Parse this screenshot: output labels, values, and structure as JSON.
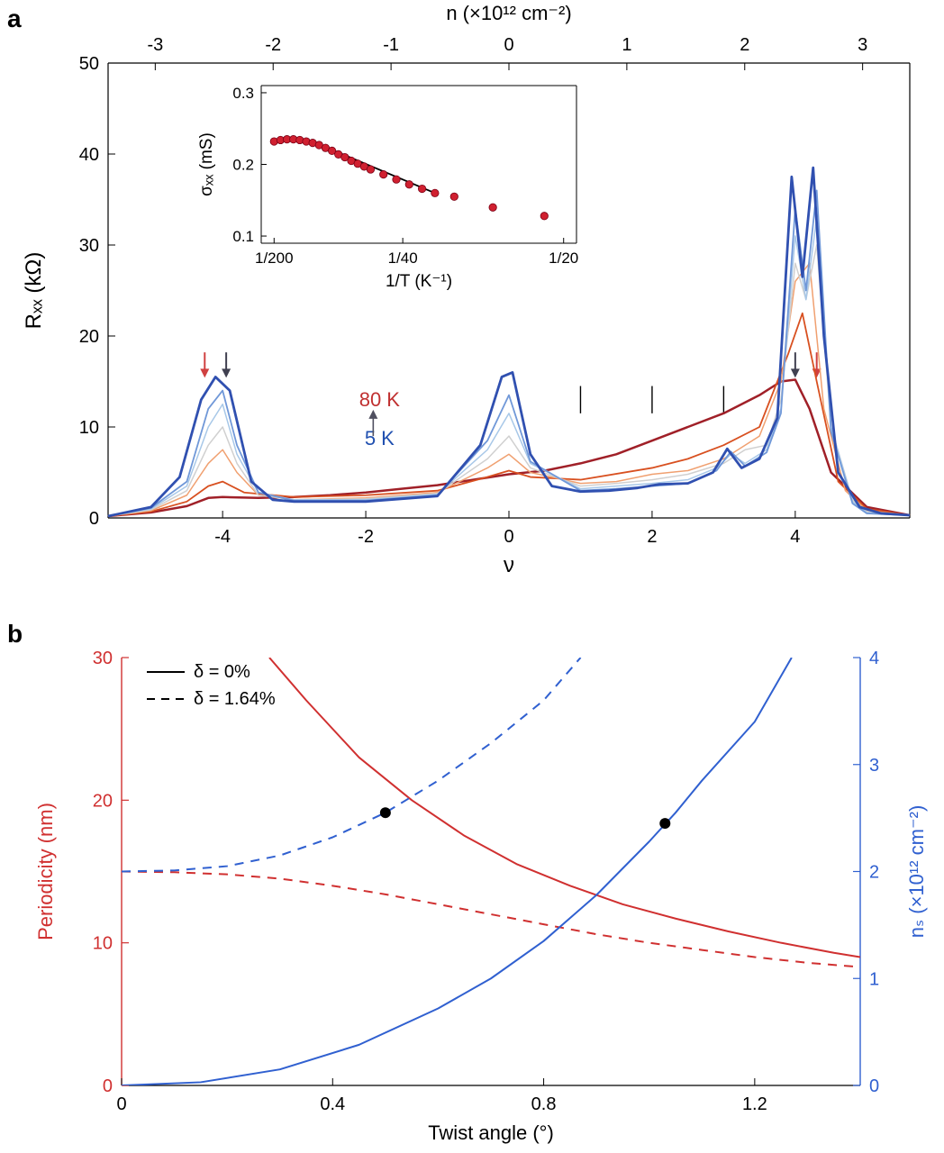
{
  "panelA": {
    "label": "a",
    "topAxis": {
      "label": "n (×10¹² cm⁻²)",
      "ticks": [
        -3,
        -2,
        -1,
        0,
        1,
        2,
        3
      ],
      "min": -3.4,
      "max": 3.4
    },
    "bottomAxis": {
      "label": "ν",
      "ticks": [
        -4,
        -2,
        0,
        2,
        4
      ],
      "min": -5.6,
      "max": 5.6
    },
    "leftAxis": {
      "label": "Rₓₓ (kΩ)",
      "ticks": [
        0,
        10,
        20,
        30,
        40,
        50
      ],
      "min": 0,
      "max": 50
    },
    "tempAnnotations": {
      "high": "80 K",
      "low": "5 K",
      "highColor": "#c03030",
      "lowColor": "#2050b0"
    },
    "vMarks": [
      1,
      2,
      3
    ],
    "arrows": [
      {
        "x": -4.25,
        "color": "#d04040"
      },
      {
        "x": -3.95,
        "color": "#404050"
      },
      {
        "x": 4.0,
        "color": "#404050"
      },
      {
        "x": 4.3,
        "color": "#d04040"
      }
    ],
    "curves": [
      {
        "color": "#a02028",
        "width": 2.5,
        "points": [
          [
            -5.6,
            0.2
          ],
          [
            -5.0,
            0.6
          ],
          [
            -4.5,
            1.3
          ],
          [
            -4.2,
            2.2
          ],
          [
            -4.0,
            2.3
          ],
          [
            -3.5,
            2.2
          ],
          [
            -3.0,
            2.3
          ],
          [
            -2.5,
            2.5
          ],
          [
            -2.0,
            2.8
          ],
          [
            -1.5,
            3.2
          ],
          [
            -1.0,
            3.6
          ],
          [
            -0.5,
            4.2
          ],
          [
            0.0,
            4.8
          ],
          [
            0.5,
            5.2
          ],
          [
            1.0,
            6.0
          ],
          [
            1.5,
            7.0
          ],
          [
            2.0,
            8.5
          ],
          [
            2.5,
            10.0
          ],
          [
            3.0,
            11.5
          ],
          [
            3.5,
            13.5
          ],
          [
            3.8,
            15.0
          ],
          [
            4.0,
            15.2
          ],
          [
            4.2,
            12.0
          ],
          [
            4.5,
            5.0
          ],
          [
            5.0,
            1.2
          ],
          [
            5.6,
            0.3
          ]
        ]
      },
      {
        "color": "#d85020",
        "width": 1.8,
        "points": [
          [
            -5.6,
            0.2
          ],
          [
            -5.0,
            0.7
          ],
          [
            -4.5,
            1.8
          ],
          [
            -4.2,
            3.5
          ],
          [
            -4.0,
            4.0
          ],
          [
            -3.7,
            2.8
          ],
          [
            -3.0,
            2.3
          ],
          [
            -2.0,
            2.5
          ],
          [
            -1.0,
            3.0
          ],
          [
            -0.3,
            4.5
          ],
          [
            0.0,
            5.2
          ],
          [
            0.3,
            4.5
          ],
          [
            1.0,
            4.2
          ],
          [
            2.0,
            5.5
          ],
          [
            2.5,
            6.5
          ],
          [
            3.0,
            8.0
          ],
          [
            3.5,
            10.0
          ],
          [
            3.9,
            18.0
          ],
          [
            4.1,
            22.5
          ],
          [
            4.3,
            15.0
          ],
          [
            4.6,
            4.0
          ],
          [
            5.0,
            1.0
          ],
          [
            5.6,
            0.3
          ]
        ]
      },
      {
        "color": "#f0a070",
        "width": 1.5,
        "points": [
          [
            -5.6,
            0.2
          ],
          [
            -5.0,
            0.8
          ],
          [
            -4.5,
            2.5
          ],
          [
            -4.2,
            6.0
          ],
          [
            -4.0,
            7.5
          ],
          [
            -3.8,
            5.0
          ],
          [
            -3.5,
            2.5
          ],
          [
            -3.0,
            2.0
          ],
          [
            -2.0,
            2.2
          ],
          [
            -1.0,
            2.8
          ],
          [
            -0.3,
            5.5
          ],
          [
            0.0,
            7.0
          ],
          [
            0.3,
            5.0
          ],
          [
            1.0,
            3.8
          ],
          [
            1.5,
            4.0
          ],
          [
            2.0,
            4.8
          ],
          [
            2.5,
            5.2
          ],
          [
            3.0,
            6.5
          ],
          [
            3.5,
            9.0
          ],
          [
            3.8,
            15.0
          ],
          [
            4.0,
            26.0
          ],
          [
            4.2,
            28.0
          ],
          [
            4.4,
            12.0
          ],
          [
            4.7,
            3.0
          ],
          [
            5.0,
            0.8
          ],
          [
            5.6,
            0.3
          ]
        ]
      },
      {
        "color": "#d0d0d0",
        "width": 1.5,
        "points": [
          [
            -5.6,
            0.2
          ],
          [
            -5.0,
            0.9
          ],
          [
            -4.5,
            3.0
          ],
          [
            -4.2,
            8.0
          ],
          [
            -4.0,
            10.0
          ],
          [
            -3.8,
            6.0
          ],
          [
            -3.5,
            2.5
          ],
          [
            -3.0,
            2.0
          ],
          [
            -2.0,
            2.1
          ],
          [
            -1.0,
            2.7
          ],
          [
            -0.3,
            6.5
          ],
          [
            0.0,
            9.0
          ],
          [
            0.3,
            5.5
          ],
          [
            1.0,
            3.5
          ],
          [
            1.5,
            3.8
          ],
          [
            2.0,
            4.2
          ],
          [
            2.5,
            4.8
          ],
          [
            3.0,
            6.0
          ],
          [
            3.3,
            7.5
          ],
          [
            3.6,
            8.0
          ],
          [
            3.8,
            13.0
          ],
          [
            4.0,
            28.0
          ],
          [
            4.15,
            24.0
          ],
          [
            4.3,
            30.0
          ],
          [
            4.5,
            10.0
          ],
          [
            4.8,
            2.0
          ],
          [
            5.0,
            0.7
          ],
          [
            5.6,
            0.3
          ]
        ]
      },
      {
        "color": "#a8c8e8",
        "width": 1.5,
        "points": [
          [
            -5.6,
            0.2
          ],
          [
            -5.0,
            1.0
          ],
          [
            -4.5,
            3.5
          ],
          [
            -4.2,
            10.0
          ],
          [
            -4.0,
            12.5
          ],
          [
            -3.8,
            7.0
          ],
          [
            -3.5,
            2.8
          ],
          [
            -3.0,
            2.0
          ],
          [
            -2.0,
            2.0
          ],
          [
            -1.0,
            2.6
          ],
          [
            -0.3,
            7.5
          ],
          [
            0.0,
            11.5
          ],
          [
            0.3,
            6.0
          ],
          [
            1.0,
            3.2
          ],
          [
            1.5,
            3.5
          ],
          [
            2.0,
            3.8
          ],
          [
            2.5,
            4.2
          ],
          [
            2.9,
            5.5
          ],
          [
            3.1,
            7.0
          ],
          [
            3.3,
            6.0
          ],
          [
            3.6,
            7.5
          ],
          [
            3.8,
            12.0
          ],
          [
            4.0,
            31.0
          ],
          [
            4.15,
            24.0
          ],
          [
            4.3,
            33.0
          ],
          [
            4.5,
            10.0
          ],
          [
            4.8,
            1.8
          ],
          [
            5.0,
            0.6
          ],
          [
            5.6,
            0.3
          ]
        ]
      },
      {
        "color": "#7098d8",
        "width": 1.8,
        "points": [
          [
            -5.6,
            0.2
          ],
          [
            -5.0,
            1.1
          ],
          [
            -4.5,
            4.0
          ],
          [
            -4.2,
            12.0
          ],
          [
            -4.0,
            14.0
          ],
          [
            -3.8,
            8.0
          ],
          [
            -3.5,
            2.8
          ],
          [
            -3.0,
            1.9
          ],
          [
            -2.0,
            1.9
          ],
          [
            -1.0,
            2.5
          ],
          [
            -0.3,
            8.5
          ],
          [
            0.0,
            13.5
          ],
          [
            0.3,
            6.2
          ],
          [
            1.0,
            3.0
          ],
          [
            1.5,
            3.2
          ],
          [
            2.0,
            3.5
          ],
          [
            2.5,
            3.8
          ],
          [
            2.9,
            5.2
          ],
          [
            3.1,
            7.3
          ],
          [
            3.3,
            5.7
          ],
          [
            3.6,
            7.2
          ],
          [
            3.8,
            11.5
          ],
          [
            4.0,
            34.0
          ],
          [
            4.15,
            25.0
          ],
          [
            4.3,
            36.0
          ],
          [
            4.5,
            9.5
          ],
          [
            4.8,
            1.6
          ],
          [
            5.0,
            0.5
          ],
          [
            5.6,
            0.3
          ]
        ]
      },
      {
        "color": "#3050b0",
        "width": 2.8,
        "points": [
          [
            -5.6,
            0.2
          ],
          [
            -5.0,
            1.2
          ],
          [
            -4.6,
            4.5
          ],
          [
            -4.3,
            13.0
          ],
          [
            -4.1,
            15.5
          ],
          [
            -3.9,
            14.0
          ],
          [
            -3.6,
            4.0
          ],
          [
            -3.3,
            2.0
          ],
          [
            -3.0,
            1.8
          ],
          [
            -2.0,
            1.8
          ],
          [
            -1.0,
            2.4
          ],
          [
            -0.4,
            8.0
          ],
          [
            -0.1,
            15.5
          ],
          [
            0.05,
            16.0
          ],
          [
            0.3,
            7.0
          ],
          [
            0.6,
            3.5
          ],
          [
            1.0,
            2.9
          ],
          [
            1.4,
            3.0
          ],
          [
            1.8,
            3.3
          ],
          [
            2.1,
            3.7
          ],
          [
            2.5,
            3.8
          ],
          [
            2.85,
            5.0
          ],
          [
            3.05,
            7.6
          ],
          [
            3.25,
            5.5
          ],
          [
            3.5,
            6.5
          ],
          [
            3.75,
            11.0
          ],
          [
            3.95,
            37.5
          ],
          [
            4.1,
            26.5
          ],
          [
            4.25,
            38.5
          ],
          [
            4.4,
            20.0
          ],
          [
            4.6,
            5.0
          ],
          [
            4.9,
            1.2
          ],
          [
            5.2,
            0.5
          ],
          [
            5.6,
            0.3
          ]
        ]
      }
    ],
    "inset": {
      "xlabel": "1/T (K⁻¹)",
      "ylabel": "σₓₓ (mS)",
      "xticks": [
        "1/200",
        "1/40",
        "1/20"
      ],
      "xtickpos": [
        0.005,
        0.025,
        0.05
      ],
      "yticks": [
        0.1,
        0.2,
        0.3
      ],
      "ytickpos": [
        0.1,
        0.2,
        0.3
      ],
      "xlim": [
        0.003,
        0.052
      ],
      "ylim": [
        0.09,
        0.31
      ],
      "points": [
        [
          0.005,
          0.232
        ],
        [
          0.006,
          0.234
        ],
        [
          0.007,
          0.235
        ],
        [
          0.008,
          0.235
        ],
        [
          0.009,
          0.234
        ],
        [
          0.01,
          0.232
        ],
        [
          0.011,
          0.23
        ],
        [
          0.012,
          0.227
        ],
        [
          0.013,
          0.223
        ],
        [
          0.014,
          0.219
        ],
        [
          0.015,
          0.214
        ],
        [
          0.016,
          0.21
        ],
        [
          0.017,
          0.205
        ],
        [
          0.018,
          0.201
        ],
        [
          0.019,
          0.197
        ],
        [
          0.02,
          0.193
        ],
        [
          0.022,
          0.186
        ],
        [
          0.024,
          0.179
        ],
        [
          0.026,
          0.172
        ],
        [
          0.028,
          0.166
        ],
        [
          0.03,
          0.16
        ],
        [
          0.033,
          0.155
        ],
        [
          0.039,
          0.14
        ],
        [
          0.047,
          0.128
        ]
      ],
      "pointColor": "#d02030",
      "fitLine": [
        [
          0.012,
          0.228
        ],
        [
          0.03,
          0.16
        ]
      ],
      "fitColor": "#000000"
    }
  },
  "panelB": {
    "label": "b",
    "bottomAxis": {
      "label": "Twist angle (°)",
      "ticks": [
        0,
        0.4,
        0.8,
        1.2
      ],
      "min": 0,
      "max": 1.4
    },
    "leftAxis": {
      "label": "Periodicity (nm)",
      "ticks": [
        0,
        10,
        20,
        30
      ],
      "min": 0,
      "max": 30,
      "color": "#d03030"
    },
    "rightAxis": {
      "label": "nₛ (×10¹² cm⁻²)",
      "ticks": [
        0,
        1,
        2,
        3,
        4
      ],
      "min": 0,
      "max": 4,
      "color": "#3060d0"
    },
    "legend": [
      {
        "label": "δ = 0%",
        "dash": false
      },
      {
        "label": "δ = 1.64%",
        "dash": true
      }
    ],
    "curves": {
      "red_solid": {
        "color": "#d03030",
        "dash": false,
        "axis": "left",
        "points": [
          [
            0.28,
            30
          ],
          [
            0.35,
            27
          ],
          [
            0.45,
            23
          ],
          [
            0.55,
            20
          ],
          [
            0.65,
            17.5
          ],
          [
            0.75,
            15.5
          ],
          [
            0.85,
            14
          ],
          [
            0.95,
            12.7
          ],
          [
            1.05,
            11.7
          ],
          [
            1.15,
            10.8
          ],
          [
            1.25,
            10.0
          ],
          [
            1.35,
            9.3
          ],
          [
            1.4,
            9.0
          ]
        ]
      },
      "red_dash": {
        "color": "#d03030",
        "dash": true,
        "axis": "left",
        "points": [
          [
            0,
            15
          ],
          [
            0.1,
            14.95
          ],
          [
            0.2,
            14.8
          ],
          [
            0.3,
            14.5
          ],
          [
            0.4,
            14.0
          ],
          [
            0.5,
            13.4
          ],
          [
            0.6,
            12.7
          ],
          [
            0.7,
            12.0
          ],
          [
            0.8,
            11.3
          ],
          [
            0.9,
            10.6
          ],
          [
            1.0,
            10.0
          ],
          [
            1.1,
            9.5
          ],
          [
            1.2,
            9.0
          ],
          [
            1.3,
            8.6
          ],
          [
            1.4,
            8.3
          ]
        ]
      },
      "blue_solid": {
        "color": "#3060d0",
        "dash": false,
        "axis": "right",
        "points": [
          [
            0,
            0
          ],
          [
            0.15,
            0.03
          ],
          [
            0.3,
            0.15
          ],
          [
            0.45,
            0.38
          ],
          [
            0.6,
            0.72
          ],
          [
            0.7,
            1.0
          ],
          [
            0.8,
            1.35
          ],
          [
            0.9,
            1.78
          ],
          [
            1.0,
            2.28
          ],
          [
            1.05,
            2.55
          ],
          [
            1.1,
            2.85
          ],
          [
            1.2,
            3.4
          ],
          [
            1.27,
            4.0
          ]
        ]
      },
      "blue_dash": {
        "color": "#3060d0",
        "dash": true,
        "axis": "right",
        "points": [
          [
            0,
            2.0
          ],
          [
            0.1,
            2.01
          ],
          [
            0.2,
            2.05
          ],
          [
            0.3,
            2.15
          ],
          [
            0.4,
            2.32
          ],
          [
            0.5,
            2.55
          ],
          [
            0.6,
            2.85
          ],
          [
            0.7,
            3.2
          ],
          [
            0.8,
            3.6
          ],
          [
            0.87,
            4.0
          ]
        ]
      }
    },
    "markers": [
      {
        "x": 0.5,
        "y": 2.55,
        "axis": "right",
        "curve": "blue_dash"
      },
      {
        "x": 1.03,
        "y": 2.45,
        "axis": "right",
        "curve": "blue_solid"
      }
    ],
    "markerColor": "#000000",
    "markerRadius": 6
  },
  "global": {
    "background": "#ffffff",
    "tickFontSize": 20,
    "labelFontSize": 22,
    "panelLabelFontSize": 28
  }
}
